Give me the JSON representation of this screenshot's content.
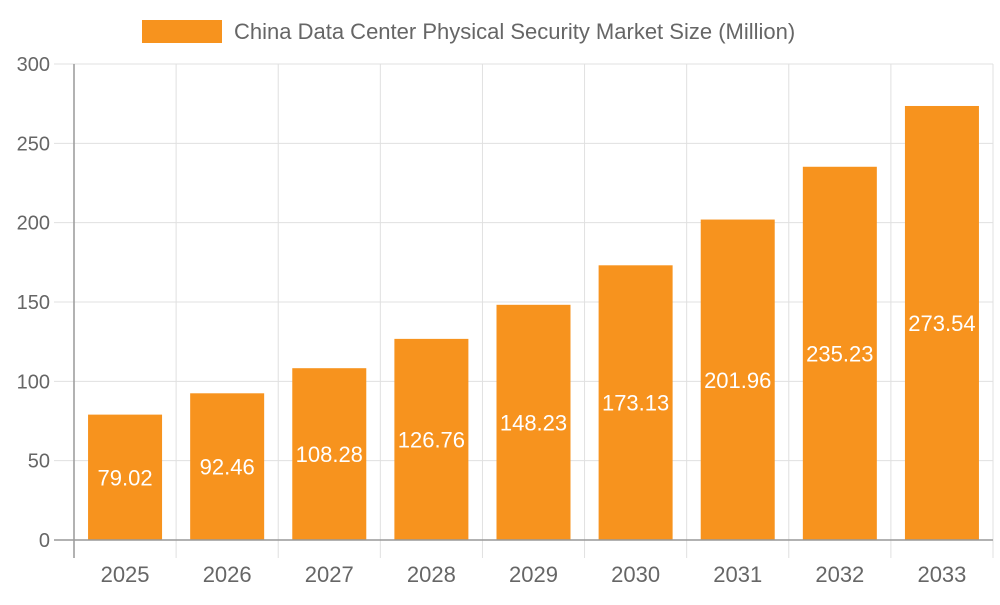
{
  "chart_data": {
    "type": "bar",
    "title": "",
    "legend": {
      "position": "top",
      "entries": [
        "China Data Center Physical Security Market Size (Million)"
      ]
    },
    "categories": [
      "2025",
      "2026",
      "2027",
      "2028",
      "2029",
      "2030",
      "2031",
      "2032",
      "2033"
    ],
    "series": [
      {
        "name": "China Data Center Physical Security Market Size (Million)",
        "values": [
          79.02,
          92.46,
          108.28,
          126.76,
          148.23,
          173.13,
          201.96,
          235.23,
          273.54
        ],
        "color": "#f7931e"
      }
    ],
    "data_labels": [
      "79.02",
      "92.46",
      "108.28",
      "126.76",
      "148.23",
      "173.13",
      "201.96",
      "235.23",
      "273.54"
    ],
    "y_ticks": [
      "0",
      "50",
      "100",
      "150",
      "200",
      "250",
      "300"
    ],
    "ylim": [
      0,
      300
    ],
    "xlabel": "",
    "ylabel": "",
    "grid": true
  }
}
